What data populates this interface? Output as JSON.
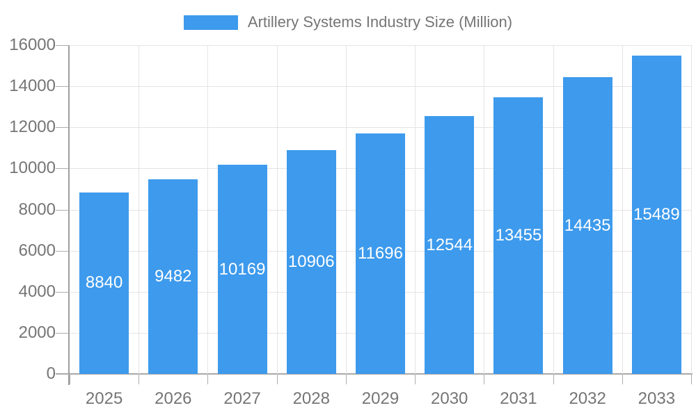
{
  "legend": {
    "label": "Artillery Systems Industry Size (Million)"
  },
  "chart_data": {
    "type": "bar",
    "title": "Artillery Systems Industry Size (Million)",
    "categories": [
      "2025",
      "2026",
      "2027",
      "2028",
      "2029",
      "2030",
      "2031",
      "2032",
      "2033"
    ],
    "values": [
      8840,
      9482,
      10169,
      10906,
      11696,
      12544,
      13455,
      14435,
      15489
    ],
    "xlabel": "",
    "ylabel": "",
    "ylim": [
      0,
      16000
    ],
    "ytick_step": 2000,
    "ytick_labels": [
      "0",
      "2000",
      "4000",
      "6000",
      "8000",
      "10000",
      "12000",
      "14000",
      "16000"
    ],
    "grid": true,
    "legend_position": "top-center",
    "bar_labels_inside": true,
    "colors": {
      "bar": "#3D9AEC",
      "bar_label": "#FFFFFF",
      "axis_text": "#757575",
      "grid_line": "#E4E4E4",
      "axis_line": "#9E9E9E",
      "tick": "#ADADAD",
      "background": "#FFFFFF"
    }
  }
}
